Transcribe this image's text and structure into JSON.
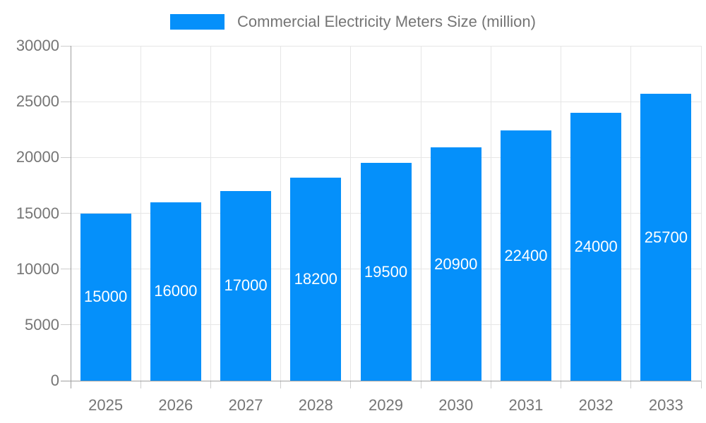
{
  "chart_data": {
    "type": "bar",
    "legend_label": "Commercial Electricity Meters Size (million)",
    "series": [
      {
        "name": "Commercial Electricity Meters Size (million)",
        "values": [
          15000,
          16000,
          17000,
          18200,
          19500,
          20900,
          22400,
          24000,
          25700
        ]
      }
    ],
    "categories": [
      "2025",
      "2026",
      "2027",
      "2028",
      "2029",
      "2030",
      "2031",
      "2032",
      "2033"
    ],
    "value_labels": [
      "15000",
      "16000",
      "17000",
      "18200",
      "19500",
      "20900",
      "22400",
      "24000",
      "25700"
    ],
    "xlabel": "",
    "ylabel": "",
    "ylim": [
      0,
      30000
    ],
    "yticks": [
      0,
      5000,
      10000,
      15000,
      20000,
      25000,
      30000
    ],
    "ytick_labels": [
      "0",
      "5000",
      "10000",
      "15000",
      "20000",
      "25000",
      "30000"
    ],
    "grid": true,
    "legend_position": "top",
    "colors": {
      "bar": "#0590fa",
      "bar_label": "#ffffff",
      "axis_text": "#757575",
      "axis_line": "#9e9e9e",
      "gridline": "#e6e6e6",
      "tick": "#cccccc"
    }
  }
}
